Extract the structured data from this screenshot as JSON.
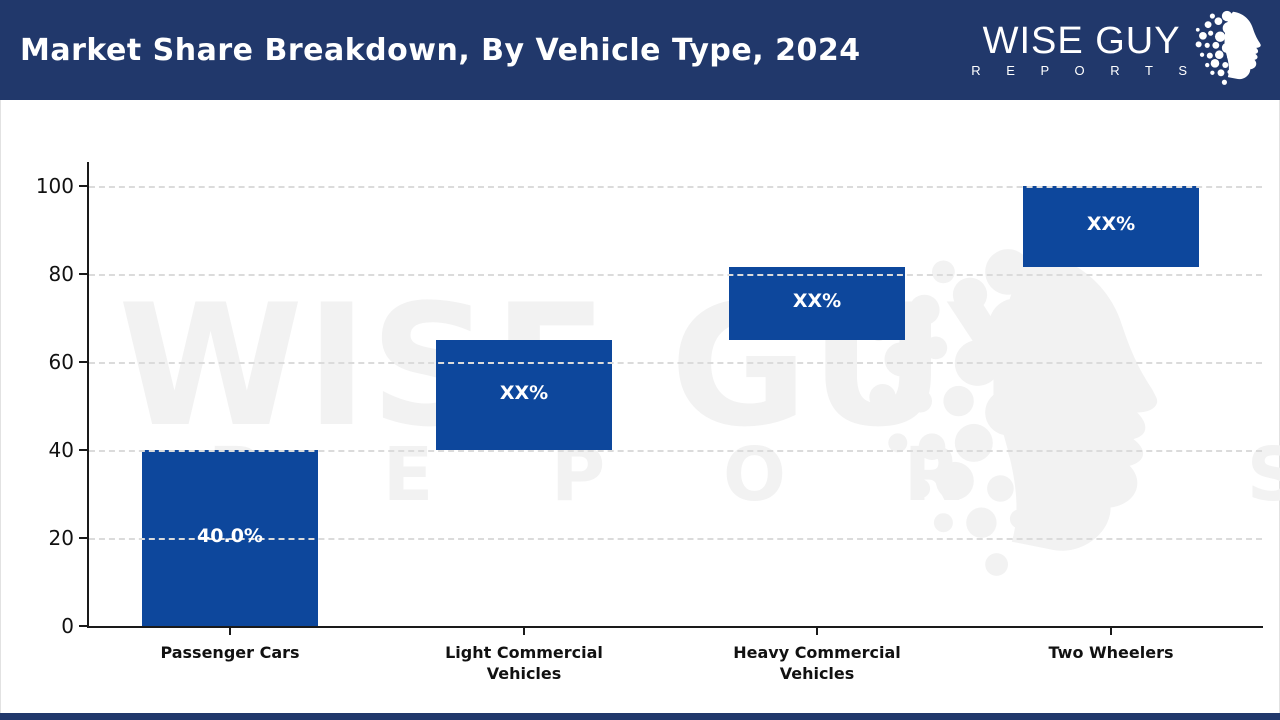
{
  "header": {
    "title": "Market Share Breakdown, By Vehicle Type, 2024",
    "logo": {
      "name": "WISE GUY",
      "reports": "R E P O R T S"
    }
  },
  "watermark": {
    "line1": "WISE GUY",
    "line2": "R E P O R T S"
  },
  "footer": {
    "style": "navy-strip"
  },
  "colors": {
    "header_bg": "#21386B",
    "bar": "#0D479C",
    "grid": "#DBDBDB",
    "axis": "#1A1A1A",
    "watermark": "#F2F2F2",
    "title_text": "#FFFFFF",
    "bar_label_text": "#FFFFFF"
  },
  "chart_data": {
    "type": "bar",
    "subtype": "waterfall-floating-bars",
    "title": "Market Share Breakdown, By Vehicle Type, 2024",
    "categories": [
      "Passenger Cars",
      "Light Commercial Vehicles",
      "Heavy Commercial Vehicles",
      "Two Wheelers"
    ],
    "segments": [
      {
        "category": "Passenger Cars",
        "start": 0,
        "end": 40,
        "value": 40.0,
        "label": "40.0%"
      },
      {
        "category": "Light Commercial Vehicles",
        "start": 40,
        "end": 65,
        "value": 25.0,
        "label": "XX%"
      },
      {
        "category": "Heavy Commercial Vehicles",
        "start": 65,
        "end": 81.6,
        "value": 16.6,
        "label": "XX%"
      },
      {
        "category": "Two Wheelers",
        "start": 81.6,
        "end": 100,
        "value": 18.4,
        "label": "XX%"
      }
    ],
    "xlabel": "",
    "ylabel": "",
    "yticks": [
      0,
      20,
      40,
      60,
      80,
      100
    ],
    "ylim": [
      0,
      100
    ],
    "grid": "horizontal-dashed",
    "legend": "none",
    "bar_color": "#0D479C"
  }
}
